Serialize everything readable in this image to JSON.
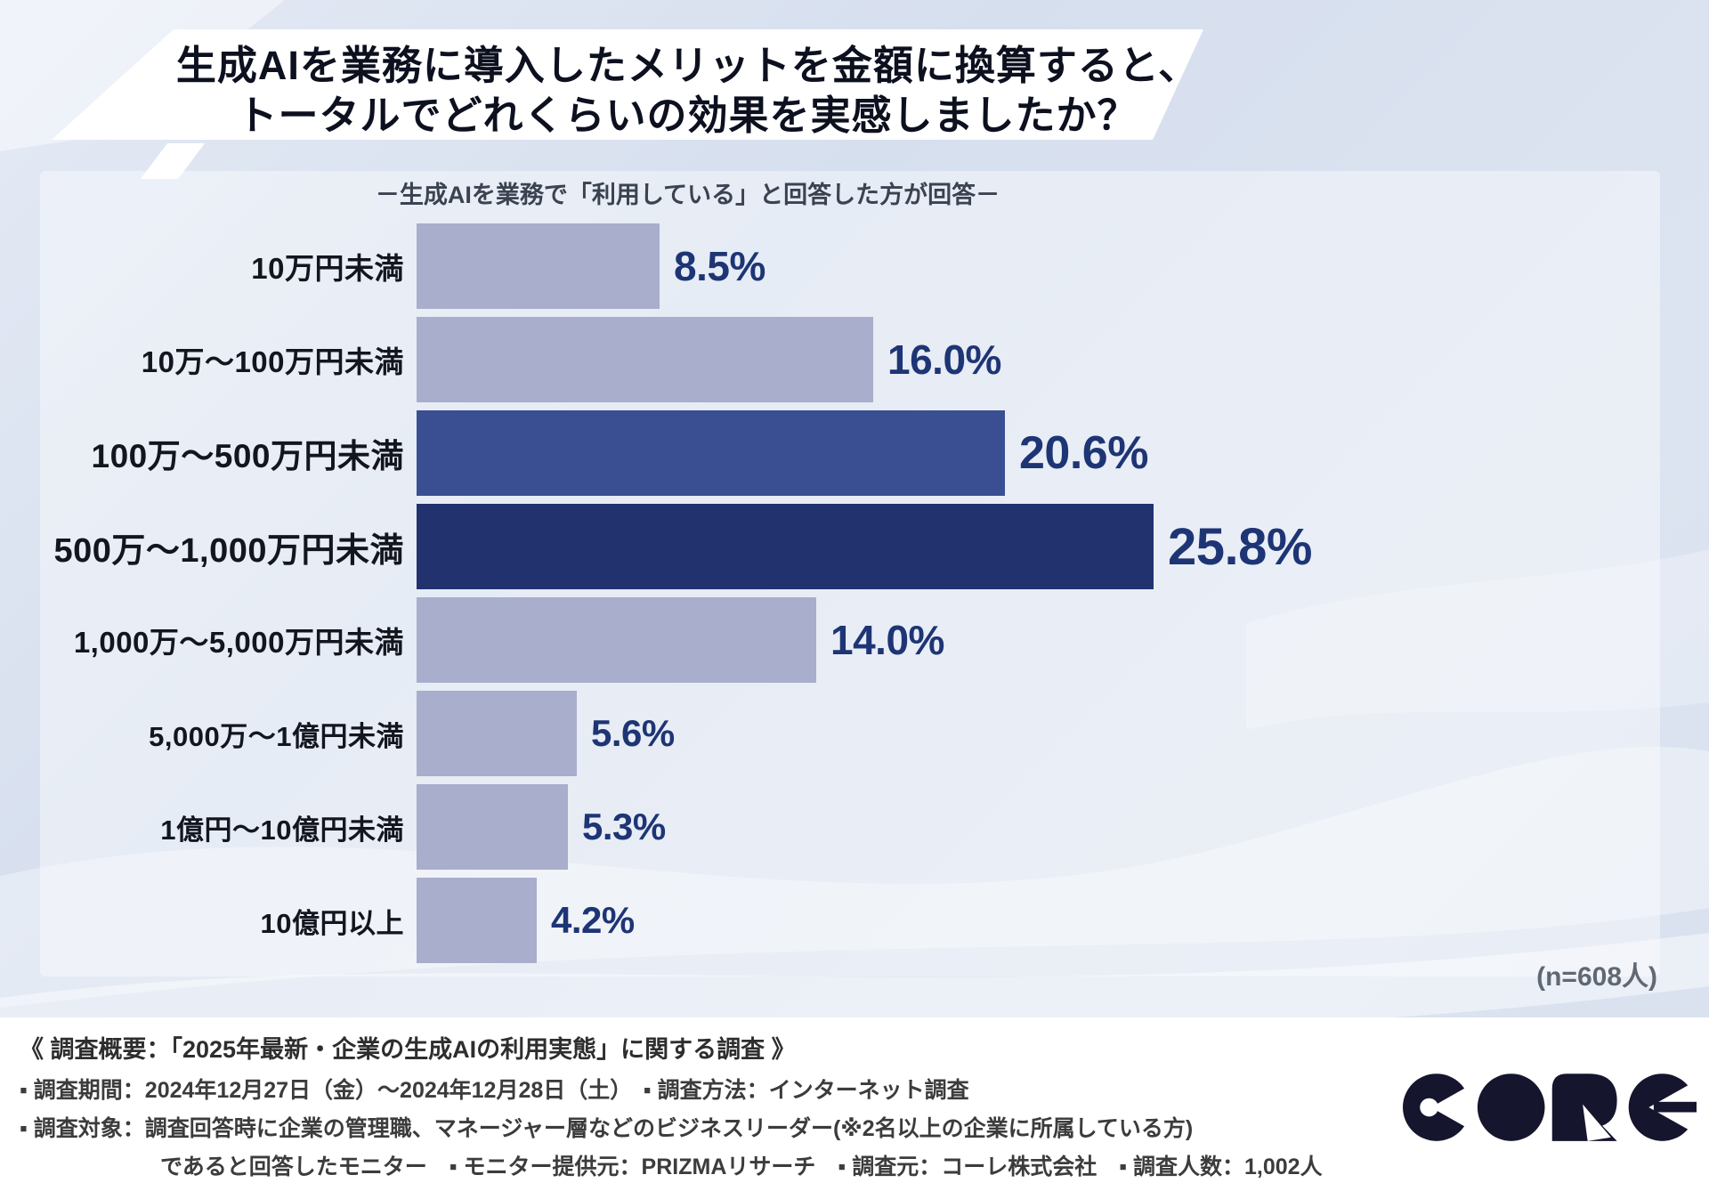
{
  "title": {
    "line1": "生成AIを業務に導入したメリットを金額に換算すると、",
    "line2": "トータルでどれくらいの効果を実感しましたか？"
  },
  "subtitle": "－生成AIを業務で「利用している」と回答した方が回答－",
  "sample_note": "(n=608人)",
  "chart_data": {
    "type": "bar",
    "orientation": "horizontal",
    "title": "生成AIを業務に導入したメリットを金額に換算すると、トータルでどれくらいの効果を実感しましたか？",
    "subtitle": "－生成AIを業務で「利用している」と回答した方が回答－",
    "categories": [
      "10万円未満",
      "10万～100万円未満",
      "100万～500万円未満",
      "500万～1,000万円未満",
      "1,000万～5,000万円未満",
      "5,000万～1億円未満",
      "1億円～10億円未満",
      "10億円以上"
    ],
    "values": [
      8.5,
      16.0,
      20.6,
      25.8,
      14.0,
      5.6,
      5.3,
      4.2
    ],
    "value_labels": [
      "8.5%",
      "16.0%",
      "20.6%",
      "25.8%",
      "14.0%",
      "5.6%",
      "5.3%",
      "4.2%"
    ],
    "unit": "%",
    "n": 608,
    "xlim": [
      0,
      27
    ],
    "grid": false,
    "legend": "none",
    "bar_color_keys": [
      "low",
      "low",
      "mid",
      "high",
      "low",
      "low",
      "low",
      "low"
    ],
    "colors": {
      "low": "#a8aecb",
      "mid": "#3a4f92",
      "high": "#22326f",
      "value_text": "#1e3575",
      "category_text": "#13151f"
    }
  },
  "footer": {
    "lines": [
      "《 調査概要：「2025年最新・企業の生成AIの利用実態」に関する調査 》",
      "▪ 調査期間：2024年12月27日（金）～2024年12月28日（土）　▪ 調査方法：インターネット調査",
      "▪ 調査対象：調査回答時に企業の管理職、マネージャー層などのビジネスリーダー(※2名以上の企業に所属している方)",
      "であると回答したモニター　▪ モニター提供元：PRIZMAリサーチ　▪ 調査元：コーレ株式会社　▪ 調査人数：1,002人"
    ]
  },
  "logo": {
    "text": "CORE",
    "color": "#15152e"
  }
}
